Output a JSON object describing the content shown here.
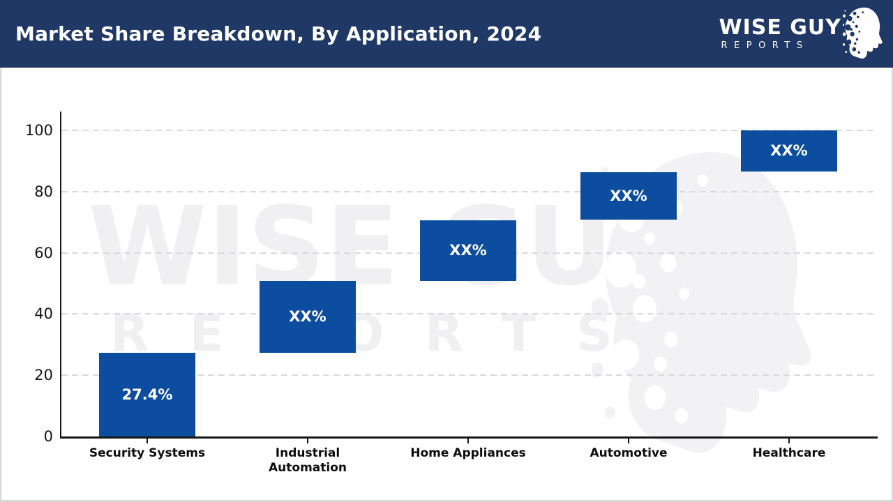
{
  "header": {
    "title": "Market Share Breakdown, By Application, 2024",
    "logo": {
      "line1": "WISE GUY",
      "line2": "REPORTS"
    }
  },
  "watermark": {
    "line1": "WISE GUY",
    "line2": "REPORTS"
  },
  "chart_data": {
    "type": "bar",
    "subtype": "waterfall-stacked-breakdown",
    "title": "Market Share Breakdown, By Application, 2024",
    "categories": [
      "Security Systems",
      "Industrial Automation",
      "Home Appliances",
      "Automotive",
      "Healthcare"
    ],
    "segments": [
      {
        "category": "Security Systems",
        "start": 0,
        "end": 27.4,
        "label": "27.4%"
      },
      {
        "category": "Industrial Automation",
        "start": 27.4,
        "end": 50.8,
        "label": "XX%"
      },
      {
        "category": "Home Appliances",
        "start": 50.8,
        "end": 70.6,
        "label": "XX%"
      },
      {
        "category": "Automotive",
        "start": 70.8,
        "end": 86.3,
        "label": "XX%"
      },
      {
        "category": "Healthcare",
        "start": 86.6,
        "end": 100,
        "label": "XX%"
      }
    ],
    "yticks": [
      0,
      20,
      40,
      60,
      80,
      100
    ],
    "ylim": [
      0,
      106
    ],
    "grid": "horizontal-dashed",
    "legend": "none",
    "bar_color": "#0c4da0",
    "bar_label_color": "#ffffff",
    "axis_color": "#161616",
    "gridline_color": "#dadada"
  },
  "colors": {
    "header_bg": "#1f3865",
    "body_bg": "#ffffff",
    "watermark": "#f0f0f2",
    "frame_border": "#d6d6d6"
  }
}
